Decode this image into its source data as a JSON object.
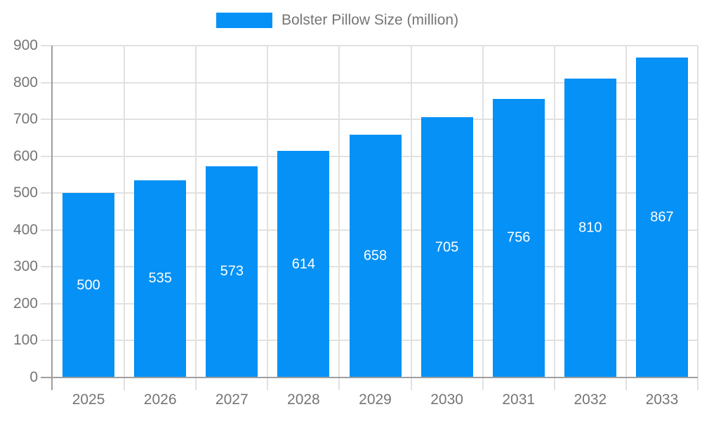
{
  "legend": {
    "label": "Bolster Pillow Size (million)",
    "position": "top-center"
  },
  "chart_data": {
    "type": "bar",
    "title": "Bolster Pillow Size (million)",
    "categories": [
      "2025",
      "2026",
      "2027",
      "2028",
      "2029",
      "2030",
      "2031",
      "2032",
      "2033"
    ],
    "values": [
      500,
      535,
      573,
      614,
      658,
      705,
      756,
      810,
      867
    ],
    "series_name": "Bolster Pillow Size (million)",
    "xlabel": "",
    "ylabel": "",
    "ylim": [
      0,
      900
    ],
    "yticks": [
      0,
      100,
      200,
      300,
      400,
      500,
      600,
      700,
      800,
      900
    ],
    "grid": true,
    "legend_position": "top-center",
    "data_label_position": "inside-middle",
    "colors": {
      "bar": "#0591f5",
      "bar_label": "#ffffff",
      "axis_text": "#757575",
      "grid_line": "#e1e1e1",
      "axis_line": "#9e9e9e",
      "legend_text": "#757575",
      "background": "#ffffff"
    }
  }
}
